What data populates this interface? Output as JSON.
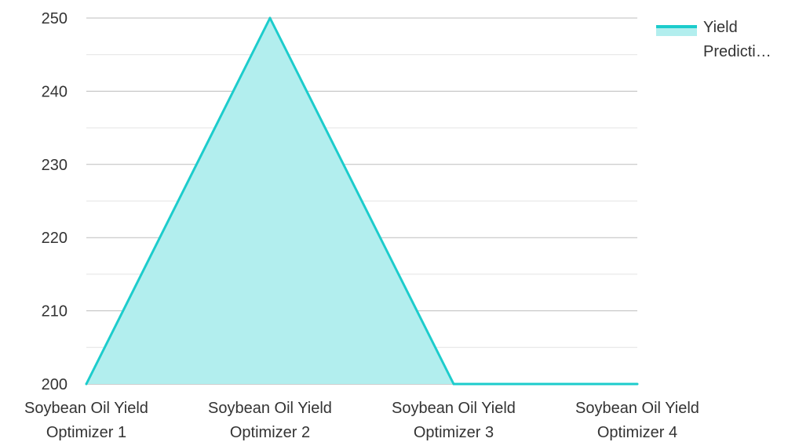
{
  "colors": {
    "line": "#1ccccc",
    "fill": "#b2eeee",
    "grid_major": "#bdbdbd",
    "grid_minor": "#e4e4e4",
    "axis": "#9e9e9e"
  },
  "legend": {
    "label_line1": "Yield",
    "label_line2": "Predicti…"
  },
  "chart_data": {
    "type": "area",
    "categories": [
      [
        "Soybean Oil Yield",
        "Optimizer 1"
      ],
      [
        "Soybean Oil Yield",
        "Optimizer 2"
      ],
      [
        "Soybean Oil Yield",
        "Optimizer 3"
      ],
      [
        "Soybean Oil Yield",
        "Optimizer 4"
      ]
    ],
    "series": [
      {
        "name": "Yield Predicti…",
        "values": [
          200,
          250,
          200,
          200
        ]
      }
    ],
    "ylim": [
      200,
      250
    ],
    "yticks": [
      200,
      210,
      220,
      230,
      240,
      250
    ],
    "minor_step": 5,
    "grid": true,
    "legend_position": "top-right"
  }
}
